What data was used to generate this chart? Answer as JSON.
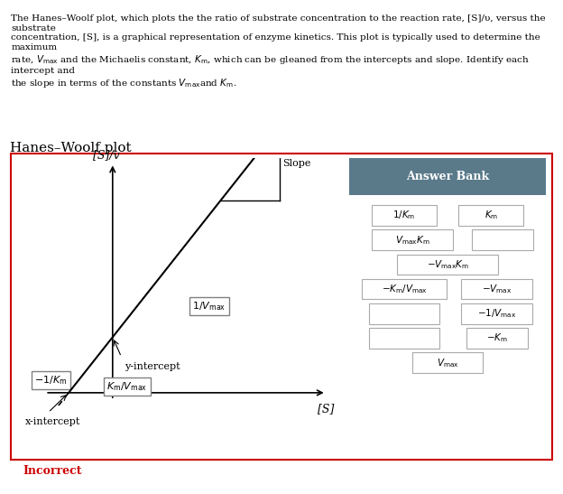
{
  "title": "Hanes–Woolf plot",
  "paragraph": "The Hanes–Woolf plot, which plots the the ratio of substrate concentration to the reaction rate, [S]/υ, versus the substrate concentration, [S], is a graphical representation of enzyme kinetics. This plot is typically used to determine the maximum rate, Vₘₐˣ and the Michaelis constant, Kₘ, which can be gleaned from the intercepts and slope. Identify each intercept and the slope in terms of the constants Vₘₐˣand Kₘ.",
  "x_label": "[S]",
  "y_label": "[S]/v",
  "slope_label": "Slope",
  "slope_box_label": "1/Vₘₐˣ",
  "y_intercept_label": "y-intercept",
  "y_intercept_box_label": "Kₘ/Vₘₐˣ",
  "x_intercept_label": "x-intercept",
  "x_intercept_box_label": "−1/Kₘ",
  "answer_bank_title": "Answer Bank",
  "answer_bank_items": [
    [
      "1/Kₘ",
      "Kₘ"
    ],
    [
      "VₘₐˣKₘ",
      ""
    ],
    [
      "−VₘₐˣKₘ",
      ""
    ],
    [
      "−Kₘ/Vₘₐˣ",
      "−Vₘₐˣ"
    ],
    [
      "",
      "−1/Vₘₐˣ"
    ],
    [
      "",
      "−Kₘ"
    ],
    [
      "Vₘₐˣ",
      ""
    ]
  ],
  "outer_border_color": "#cc0000",
  "answer_bank_header_color": "#5a7a8a",
  "incorrect_text": "Incorrect",
  "incorrect_color": "#cc0000"
}
